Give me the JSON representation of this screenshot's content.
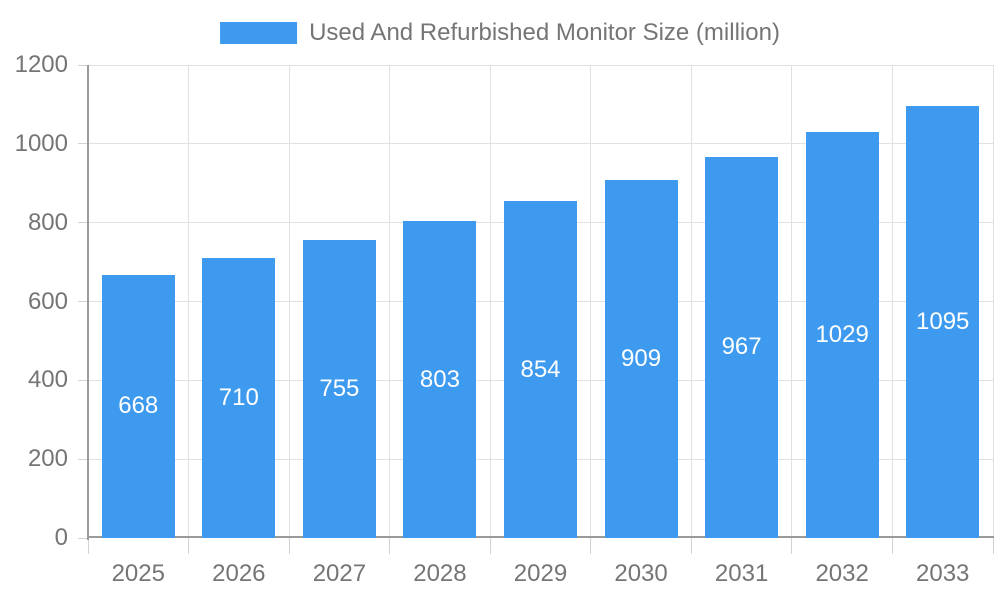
{
  "chart_data": {
    "type": "bar",
    "title": "Used And Refurbished Monitor Size (million)",
    "categories": [
      "2025",
      "2026",
      "2027",
      "2028",
      "2029",
      "2030",
      "2031",
      "2032",
      "2033"
    ],
    "values": [
      668,
      710,
      755,
      803,
      854,
      909,
      967,
      1029,
      1095
    ],
    "xlabel": "",
    "ylabel": "",
    "ylim": [
      0,
      1200
    ],
    "yticks": [
      0,
      200,
      400,
      600,
      800,
      1000,
      1200
    ],
    "grid": true,
    "legend_position": "top",
    "bar_labels_shown": true
  },
  "colors": {
    "bar": "#3D9AEF",
    "grid": "#e1e1e1",
    "axis": "#9a9a9a",
    "tick": "#d2d2d2",
    "label_text": "#757575",
    "bar_label": "#ffffff",
    "background": "#ffffff"
  }
}
